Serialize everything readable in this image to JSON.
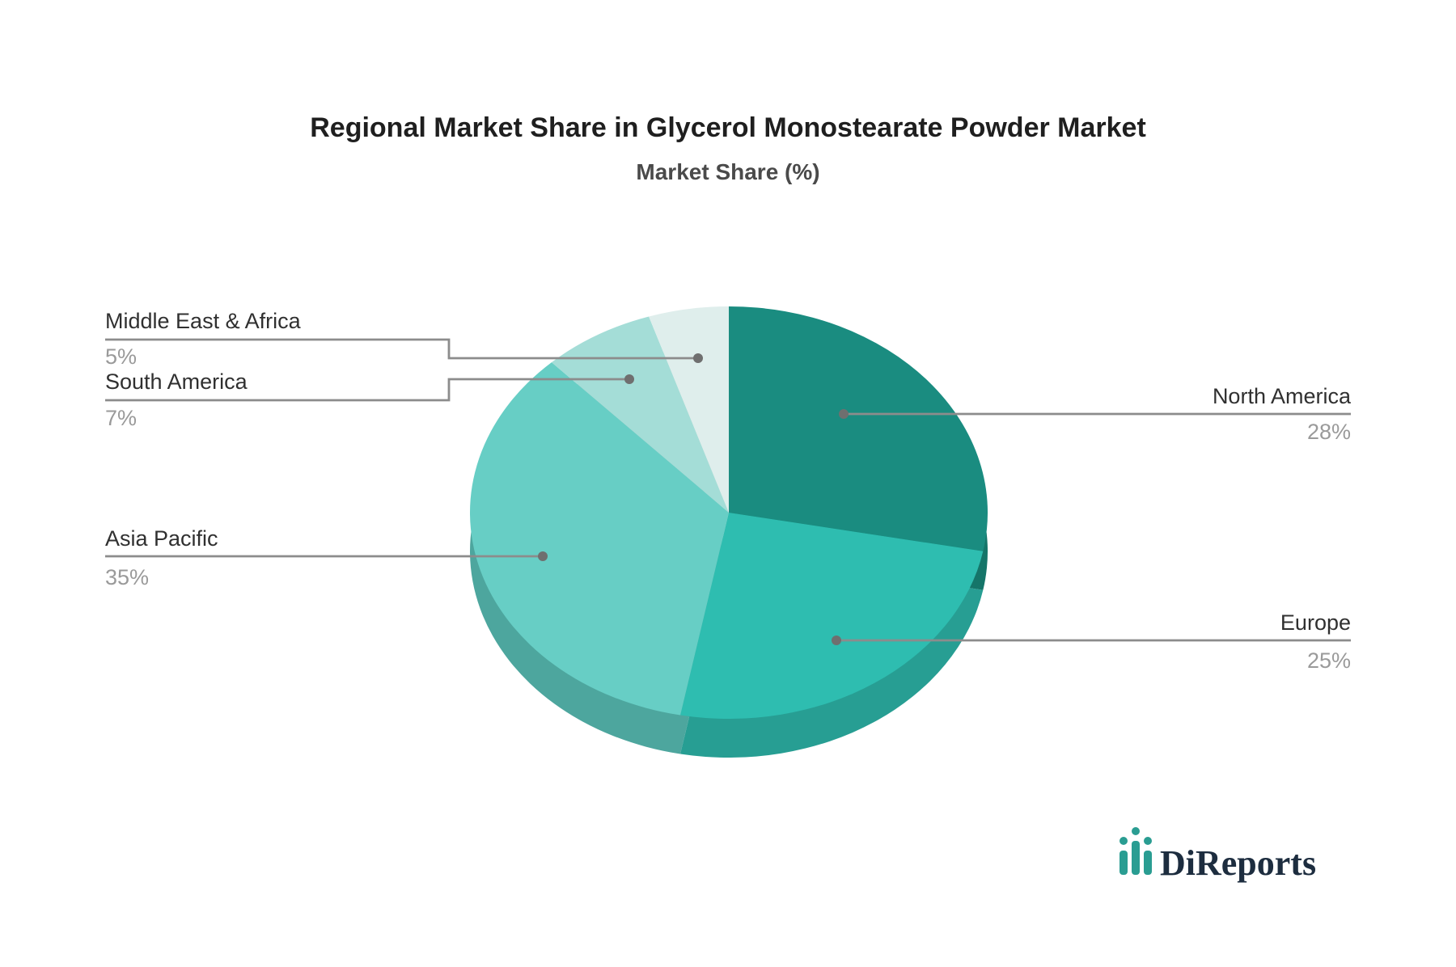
{
  "title": "Regional Market Share in Glycerol Monostearate Powder Market",
  "subtitle": "Market Share (%)",
  "logo": {
    "text": "DiReports",
    "icon": "bar-chart-logo-icon"
  },
  "colors": {
    "background": "#ffffff",
    "title_text": "#1f1f1f",
    "subtitle_text": "#4a4a4a",
    "label_text": "#303030",
    "value_text": "#9a9a9a",
    "leader_line": "#8c8c8c",
    "leader_dot": "#6f6f6f",
    "logo_text": "#1d2d3f",
    "logo_teal": "#2a9d92"
  },
  "chart_data": {
    "type": "pie",
    "title": "Regional Market Share in Glycerol Monostearate Powder Market",
    "subtitle": "Market Share (%)",
    "unit": "%",
    "direction": "clockwise",
    "start_angle_deg": 0,
    "effect": "3d-depth",
    "legend_position": "callout-labels",
    "slices": [
      {
        "label": "North America",
        "value": 28,
        "display_value": "28%",
        "color": "#1a8c80",
        "side_color": "#157569",
        "callout_side": "right"
      },
      {
        "label": "Europe",
        "value": 25,
        "display_value": "25%",
        "color": "#2ebdb0",
        "side_color": "#279e93",
        "callout_side": "right"
      },
      {
        "label": "Asia Pacific",
        "value": 35,
        "display_value": "35%",
        "color": "#67cec5",
        "side_color": "#4da69e",
        "callout_side": "left"
      },
      {
        "label": "South America",
        "value": 7,
        "display_value": "7%",
        "color": "#a4ddd7",
        "side_color": "#8bc2bb",
        "callout_side": "left"
      },
      {
        "label": "Middle East & Africa",
        "value": 5,
        "display_value": "5%",
        "color": "#dfeeec",
        "side_color": "#c2d8d4",
        "callout_side": "left"
      }
    ]
  }
}
